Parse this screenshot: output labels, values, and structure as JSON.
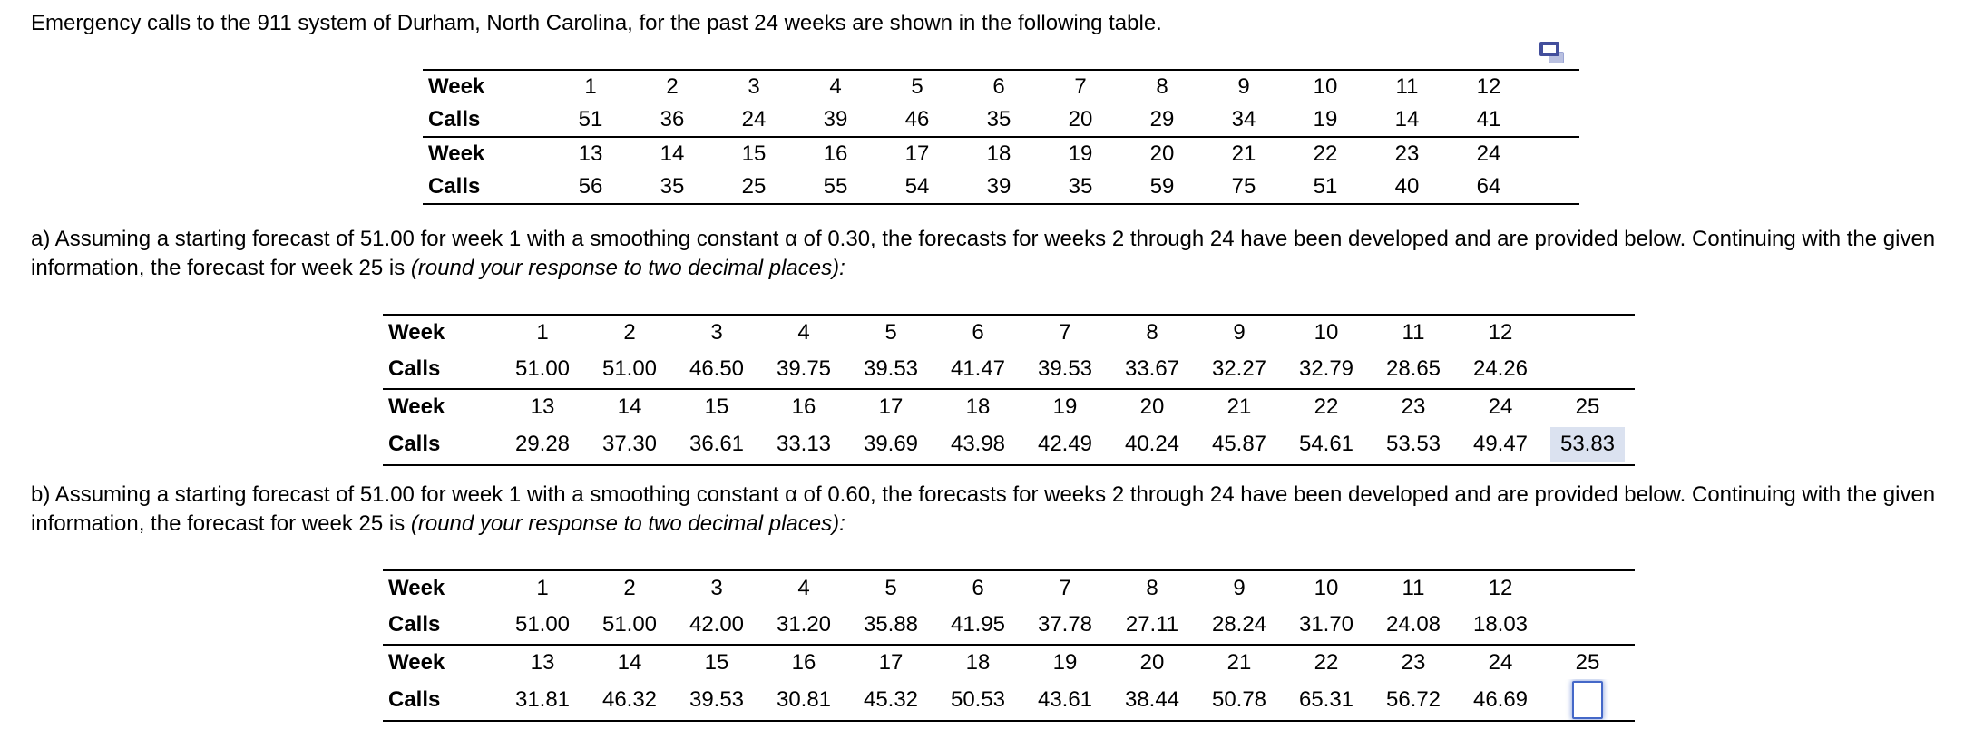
{
  "page": {
    "title": "Emergency calls to the 911 system of Durham, North Carolina, for the past 24 weeks are shown in the following table."
  },
  "icons": {
    "copy_table": "copy-table-icon"
  },
  "colors": {
    "text": "#000000",
    "table_rule": "#000000",
    "answer_highlight_bg": "#dbe2f0",
    "input_border": "#4468c8",
    "icon_front_border": "#434f9c",
    "icon_back_fill": "#b9c0e0"
  },
  "data_table": {
    "rows": [
      {
        "label": "Week",
        "values": [
          "1",
          "2",
          "3",
          "4",
          "5",
          "6",
          "7",
          "8",
          "9",
          "10",
          "11",
          "12"
        ]
      },
      {
        "label": "Calls",
        "values": [
          "51",
          "36",
          "24",
          "39",
          "46",
          "35",
          "20",
          "29",
          "34",
          "19",
          "14",
          "41"
        ]
      },
      {
        "label": "Week",
        "values": [
          "13",
          "14",
          "15",
          "16",
          "17",
          "18",
          "19",
          "20",
          "21",
          "22",
          "23",
          "24"
        ]
      },
      {
        "label": "Calls",
        "values": [
          "56",
          "35",
          "25",
          "55",
          "54",
          "39",
          "35",
          "59",
          "75",
          "51",
          "40",
          "64"
        ]
      }
    ]
  },
  "part_a": {
    "text_main": "a) Assuming a starting forecast of 51.00 for week 1 with a smoothing constant α of 0.30, the forecasts for weeks 2 through 24 have been developed and are provided below. Continuing with the given information, the forecast for week 25 is ",
    "text_italic": "(round your response to two decimal places):",
    "table": {
      "rows": [
        {
          "label": "Week",
          "values": [
            "1",
            "2",
            "3",
            "4",
            "5",
            "6",
            "7",
            "8",
            "9",
            "10",
            "11",
            "12",
            ""
          ]
        },
        {
          "label": "Calls",
          "values": [
            "51.00",
            "51.00",
            "46.50",
            "39.75",
            "39.53",
            "41.47",
            "39.53",
            "33.67",
            "32.27",
            "32.79",
            "28.65",
            "24.26",
            ""
          ]
        },
        {
          "label": "Week",
          "values": [
            "13",
            "14",
            "15",
            "16",
            "17",
            "18",
            "19",
            "20",
            "21",
            "22",
            "23",
            "24",
            "25"
          ]
        },
        {
          "label": "Calls",
          "values": [
            "29.28",
            "37.30",
            "36.61",
            "33.13",
            "39.69",
            "43.98",
            "42.49",
            "40.24",
            "45.87",
            "54.61",
            "53.53",
            "49.47",
            {
              "type": "highlight",
              "value": "53.83"
            }
          ]
        }
      ]
    }
  },
  "part_b": {
    "text_main": "b) Assuming a starting forecast of 51.00 for week 1 with a smoothing constant α of 0.60, the forecasts for weeks 2 through 24 have been developed and are provided below. Continuing with the given information, the forecast for week 25 is ",
    "text_italic": "(round your response to two decimal places):",
    "table": {
      "rows": [
        {
          "label": "Week",
          "values": [
            "1",
            "2",
            "3",
            "4",
            "5",
            "6",
            "7",
            "8",
            "9",
            "10",
            "11",
            "12",
            ""
          ]
        },
        {
          "label": "Calls",
          "values": [
            "51.00",
            "51.00",
            "42.00",
            "31.20",
            "35.88",
            "41.95",
            "37.78",
            "27.11",
            "28.24",
            "31.70",
            "24.08",
            "18.03",
            ""
          ]
        },
        {
          "label": "Week",
          "values": [
            "13",
            "14",
            "15",
            "16",
            "17",
            "18",
            "19",
            "20",
            "21",
            "22",
            "23",
            "24",
            "25"
          ]
        },
        {
          "label": "Calls",
          "values": [
            "31.81",
            "46.32",
            "39.53",
            "30.81",
            "45.32",
            "50.53",
            "43.61",
            "38.44",
            "50.78",
            "65.31",
            "56.72",
            "46.69",
            {
              "type": "input",
              "value": ""
            }
          ]
        }
      ]
    }
  }
}
